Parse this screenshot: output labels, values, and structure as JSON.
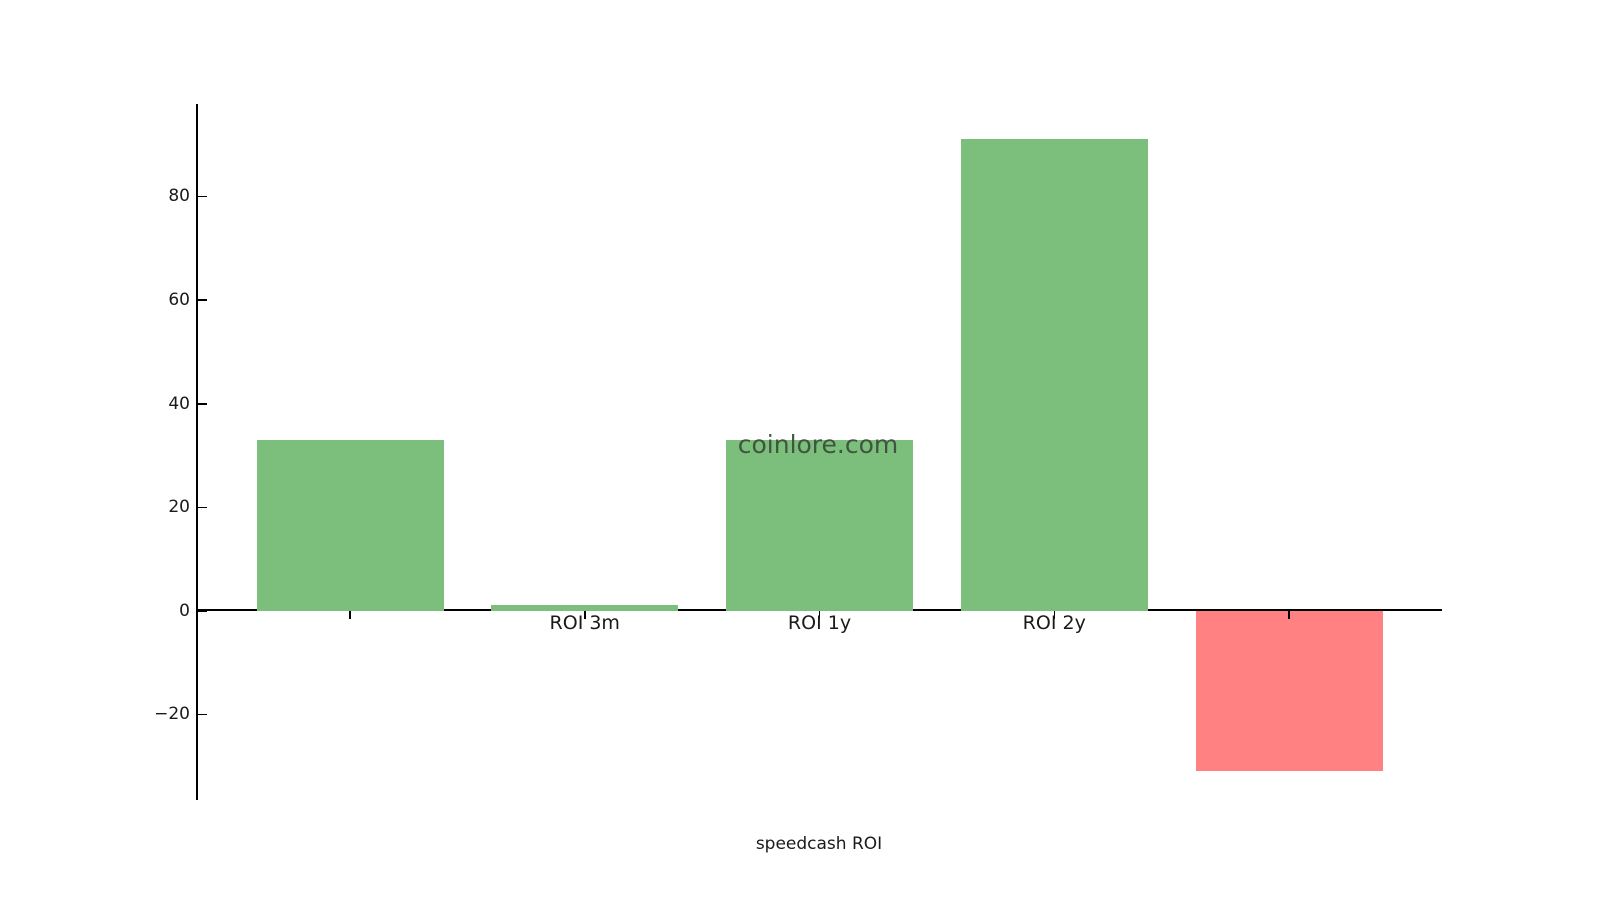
{
  "watermark": {
    "text": "coinlore.com"
  },
  "chart_data": {
    "type": "bar",
    "title": "",
    "xlabel": "speedcash ROI",
    "ylabel": "",
    "categories": [
      "",
      "ROI 3m",
      "ROI 1y",
      "ROI 2y",
      ""
    ],
    "values": [
      33,
      1.2,
      33,
      91,
      -31
    ],
    "series": [
      {
        "name": "speedcash ROI",
        "values": [
          33,
          1.2,
          33,
          91,
          -31
        ]
      }
    ],
    "positive_color": "#7cbe7c",
    "negative_color": "#ff8181",
    "bar_colors": [
      "#7cbe7c",
      "#7cbe7c",
      "#7cbe7c",
      "#7cbe7c",
      "#ff8181"
    ],
    "y_ticks": [
      80,
      60,
      40,
      20,
      0,
      -20
    ],
    "ylim": [
      -36.5,
      97.8
    ],
    "grid": false,
    "legend": null,
    "background_color": "#ffffff",
    "axis_color": "#000000"
  }
}
